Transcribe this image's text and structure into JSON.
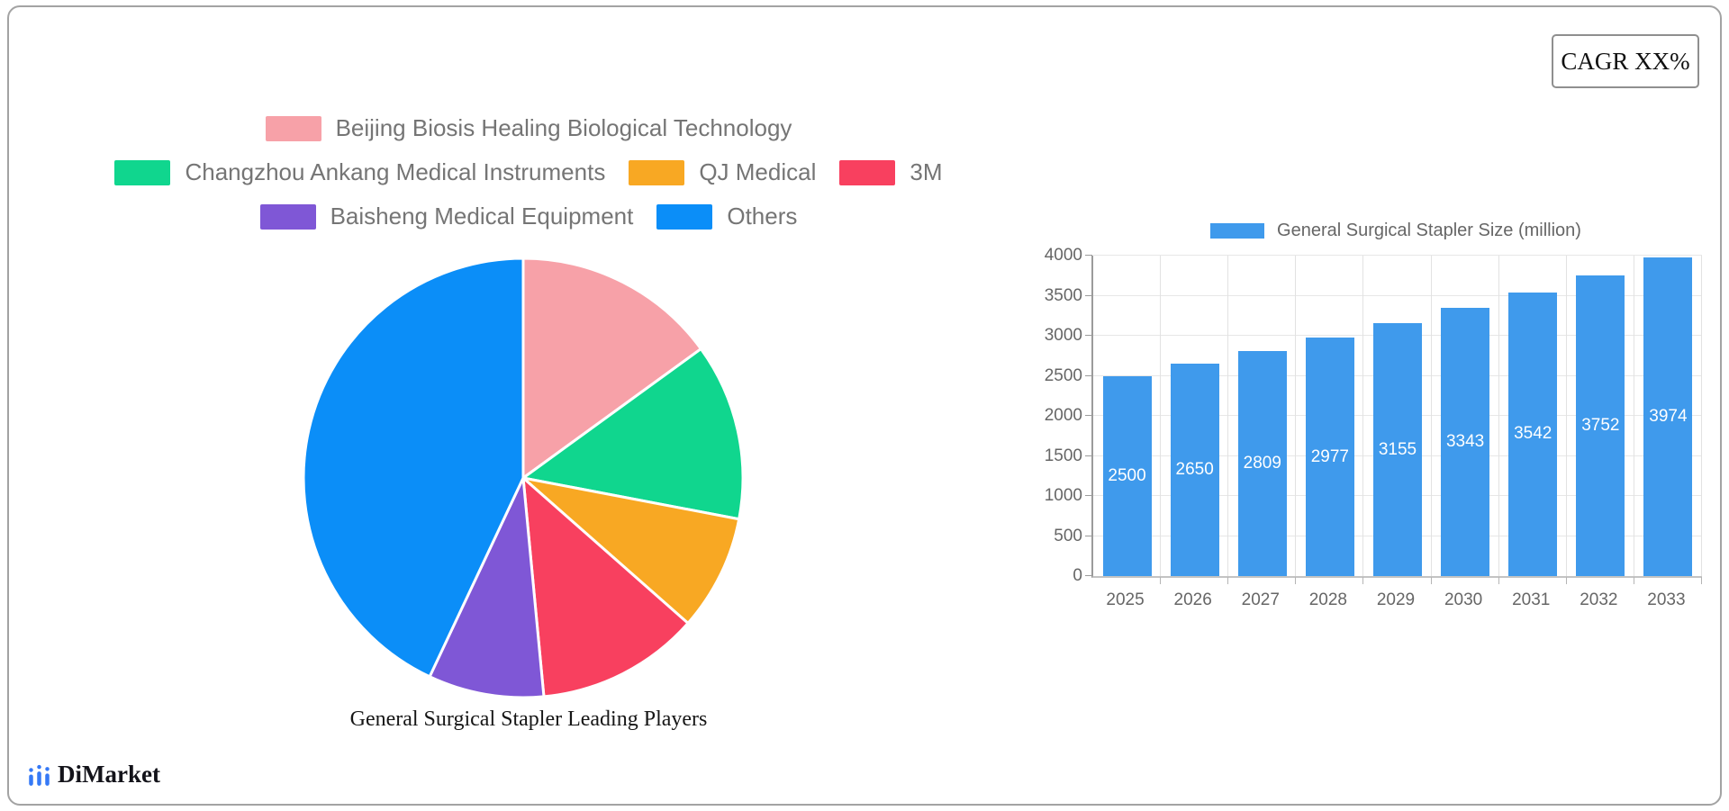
{
  "cagr_badge": {
    "label": "CAGR XX%"
  },
  "brand": {
    "name": "DiMarket",
    "icon_color": "#3579f6"
  },
  "pie_legend": {
    "text_color": "#757575",
    "rows": [
      [
        {
          "label": "Beijing Biosis Healing Biological Technology",
          "color": "#f7a1a8"
        }
      ],
      [
        {
          "label": "Changzhou Ankang Medical Instruments",
          "color": "#10d68e"
        },
        {
          "label": "QJ Medical",
          "color": "#f8a823"
        },
        {
          "label": "3M",
          "color": "#f8405f"
        }
      ],
      [
        {
          "label": "Baisheng Medical Equipment",
          "color": "#7f57d6"
        },
        {
          "label": "Others",
          "color": "#0b8ef8"
        }
      ]
    ]
  },
  "chart_data": [
    {
      "type": "pie",
      "title": "General Surgical Stapler Leading Players",
      "labels": [
        "Beijing Biosis Healing Biological Technology",
        "Changzhou Ankang Medical Instruments",
        "QJ Medical",
        "3M",
        "Baisheng Medical Equipment",
        "Others"
      ],
      "values": [
        15,
        13,
        8.5,
        12,
        8.5,
        43
      ],
      "colors": [
        "#f7a1a8",
        "#10d68e",
        "#f8a823",
        "#f8405f",
        "#7f57d6",
        "#0b8ef8"
      ],
      "start_angle_deg": 0,
      "direction": "clockwise",
      "slice_border_color": "#ffffff"
    },
    {
      "type": "bar",
      "legend": "General Surgical Stapler Size (million)",
      "categories": [
        "2025",
        "2026",
        "2027",
        "2028",
        "2029",
        "2030",
        "2031",
        "2032",
        "2033"
      ],
      "values": [
        2500,
        2650,
        2809,
        2977,
        3155,
        3343,
        3542,
        3752,
        3974
      ],
      "ylim": [
        0,
        4000
      ],
      "yticks": [
        0,
        500,
        1000,
        1500,
        2000,
        2500,
        3000,
        3500,
        4000
      ],
      "bar_color": "#3f9aec",
      "value_label_color": "#ffffff",
      "grid": true,
      "legend_position": "top"
    }
  ]
}
